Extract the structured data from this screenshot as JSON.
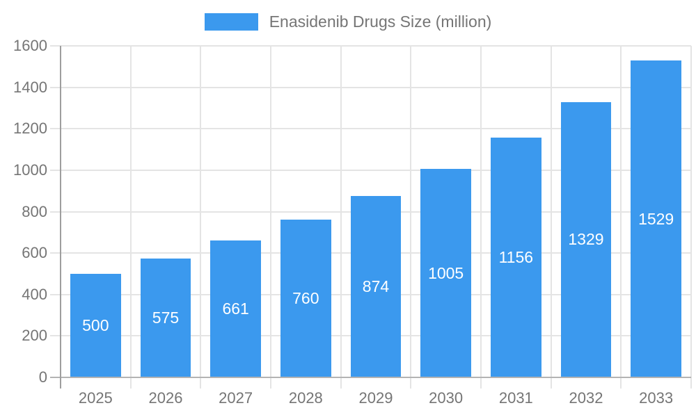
{
  "colors": {
    "bar": "#3b99ee",
    "grid": "#e4e4e4",
    "axis": "#9e9e9e",
    "baseline": "#b3b3b3",
    "label_text": "#757575",
    "value_text": "#ffffff"
  },
  "chart_data": {
    "type": "bar",
    "title": "Enasidenib Drugs Size (million)",
    "categories": [
      "2025",
      "2026",
      "2027",
      "2028",
      "2029",
      "2030",
      "2031",
      "2032",
      "2033"
    ],
    "values": [
      500,
      575,
      661,
      760,
      874,
      1005,
      1156,
      1329,
      1529
    ],
    "xlabel": "",
    "ylabel": "",
    "ylim": [
      0,
      1600
    ],
    "y_ticks": [
      0,
      200,
      400,
      600,
      800,
      1000,
      1200,
      1400,
      1600
    ],
    "grid": true,
    "legend_position": "top-center"
  }
}
